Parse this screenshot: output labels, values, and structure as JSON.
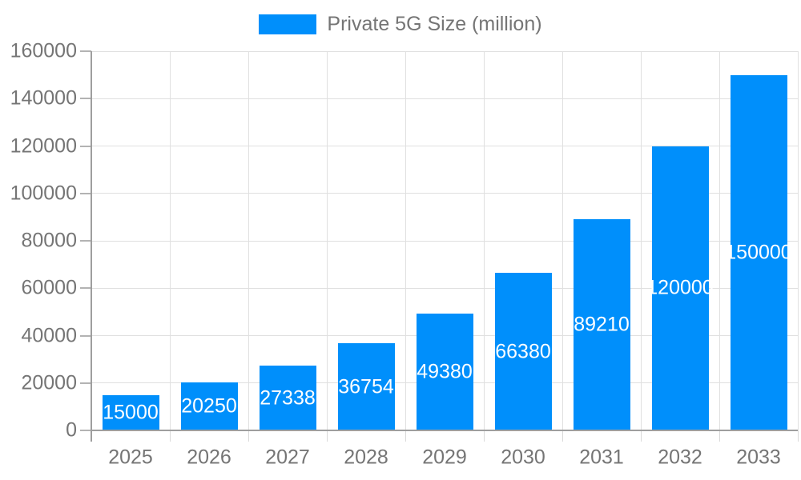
{
  "chart_data": {
    "type": "bar",
    "series_label": "Private 5G Size (million)",
    "categories": [
      "2025",
      "2026",
      "2027",
      "2028",
      "2029",
      "2030",
      "2031",
      "2032",
      "2033"
    ],
    "values": [
      15000,
      20250,
      27338,
      36754,
      49380,
      66380,
      89210,
      120000,
      150000
    ],
    "value_labels": [
      "15000",
      "20250",
      "27338",
      "36754",
      "49380",
      "66380",
      "89210",
      "120000",
      "150000"
    ],
    "title": "",
    "xlabel": "",
    "ylabel": "",
    "ylim": [
      0,
      160000
    ],
    "ytick_step": 20000,
    "ytick_labels": [
      "0",
      "20000",
      "40000",
      "60000",
      "80000",
      "100000",
      "120000",
      "140000",
      "160000"
    ],
    "grid": true,
    "legend_position": "top",
    "colors": {
      "bar": "#008ffb",
      "axis": "#9e9e9e",
      "tick": "#b3b3b3",
      "x_tick": "#d9d9d9",
      "grid": "#e0e0e0",
      "label": "#757575",
      "value_label": "#ffffff",
      "background": "#ffffff"
    }
  }
}
